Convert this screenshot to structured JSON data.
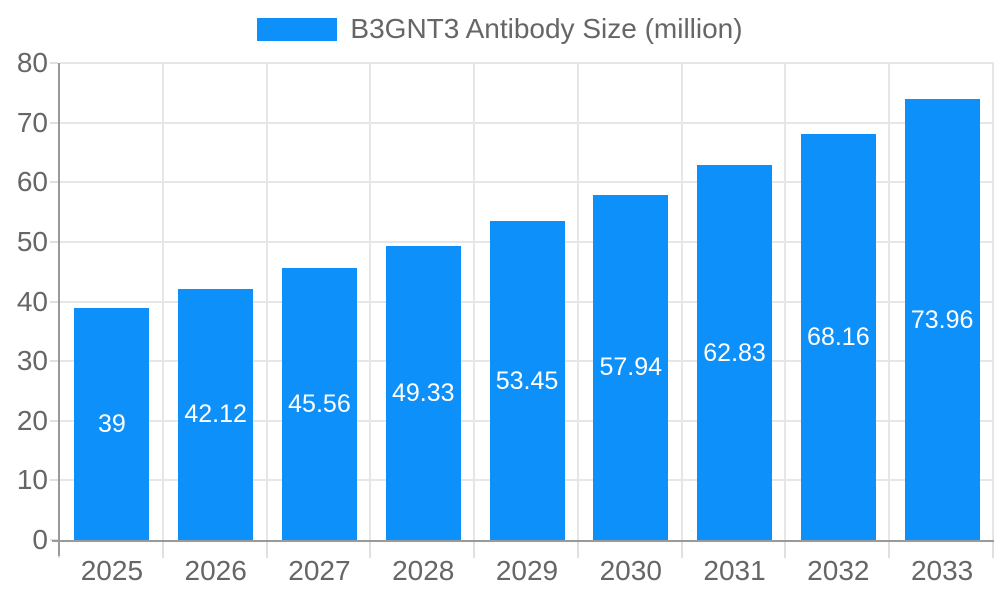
{
  "chart_data": {
    "type": "bar",
    "title": "B3GNT3 Antibody Size (million)",
    "xlabel": "",
    "ylabel": "",
    "categories": [
      "2025",
      "2026",
      "2027",
      "2028",
      "2029",
      "2030",
      "2031",
      "2032",
      "2033"
    ],
    "values": [
      39,
      42.12,
      45.56,
      49.33,
      53.45,
      57.94,
      62.83,
      68.16,
      73.96
    ],
    "value_labels": [
      "39",
      "42.12",
      "45.56",
      "49.33",
      "53.45",
      "57.94",
      "62.83",
      "68.16",
      "73.96"
    ],
    "ylim": [
      0,
      80
    ],
    "y_ticks": [
      0,
      10,
      20,
      30,
      40,
      50,
      60,
      70,
      80
    ],
    "y_tick_labels": [
      "0",
      "10",
      "20",
      "30",
      "40",
      "50",
      "60",
      "70",
      "80"
    ],
    "grid": "both",
    "legend_position": "top-center",
    "colors": {
      "bar": "#0d90f9",
      "grid": "#e6e6e6",
      "tick": "#e0e0e0",
      "axis": "#999999",
      "text": "#666666",
      "value_text": "#ffffff",
      "background": "#ffffff"
    }
  }
}
